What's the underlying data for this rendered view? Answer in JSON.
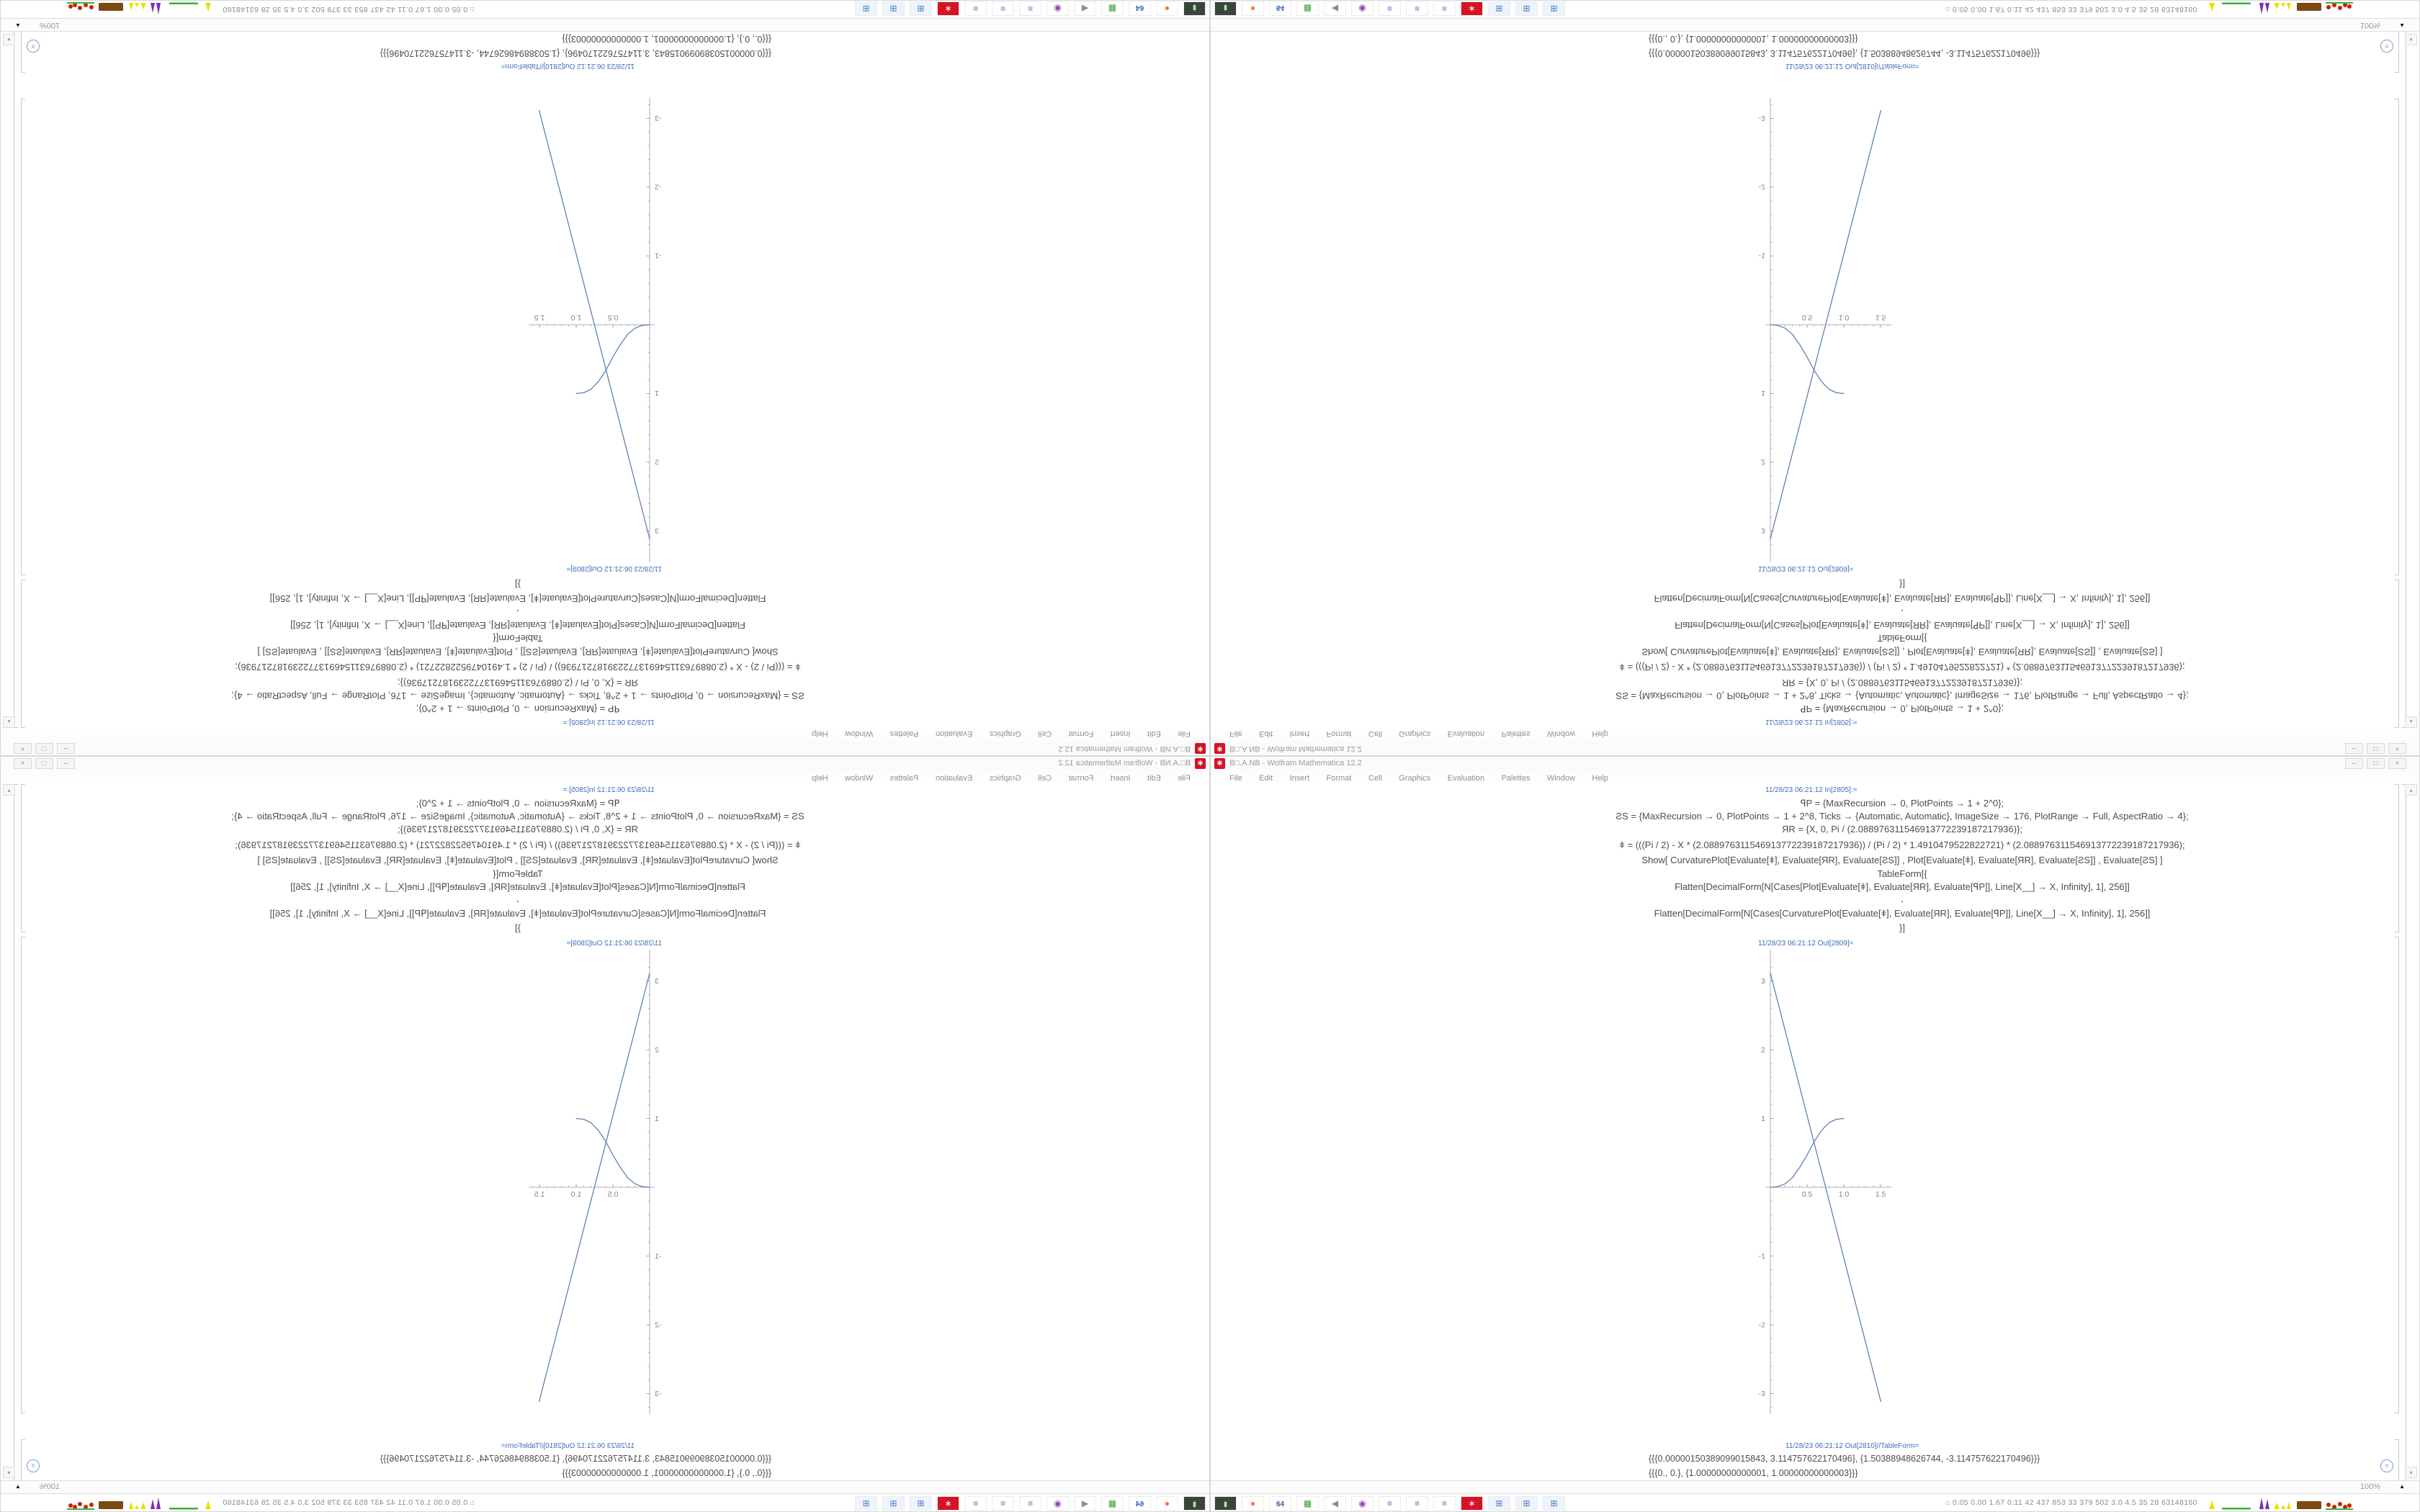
{
  "window": {
    "title": "B□.A.NB - Wolfram Mathematica 12.2",
    "app_icon": "mathematica-spikey-icon",
    "app_icon_glyph": "∗",
    "controls": {
      "minimize": "–",
      "maximize": "□",
      "close": "×"
    },
    "menu": [
      "File",
      "Edit",
      "Insert",
      "Format",
      "Cell",
      "Graphics",
      "Evaluation",
      "Palettes",
      "Window",
      "Help"
    ],
    "magnification": "100%",
    "magnification_arrow": "▲",
    "scroll_up_glyph": "▴",
    "scroll_down_glyph": "▾",
    "more_output_glyph": "»"
  },
  "notebook": {
    "in_label": "11/28/23 06:21:12 In[2805]:=",
    "code_lines": [
      "ꟼP = {MaxRecursion → 0, PlotPoints → 1 + 2^0};",
      "ƧS = {MaxRecursion → 0, PlotPoints → 1 + 2^8, Ticks → {Automatic, Automatic}, ImageSize → 176, PlotRange → Full, AspectRatio → 4};",
      "ЯR = {X, 0, Pi / (2.088976311546913772239187217936)};",
      "ǂ = (((Pi / 2) - X * (2.088976311546913772239187217936)) / (Pi / 2) * 1.4910479522822721) * (2.088976311546913772239187217936);",
      "Show[  CurvaturePlot[Evaluate[ǂ], Evaluate[ЯR], Evaluate[ƧS]] ,  Plot[Evaluate[ǂ], Evaluate[ЯR], Evaluate[ƧS]] ,  Evaluate[ƧS]  ]",
      "TableForm[{",
      "Flatten[DecimalForm[N[Cases[Plot[Evaluate[ǂ], Evaluate[ЯR], Evaluate[ꟼP]], Line[X__] → X, Infinity], 1], 256]]",
      ",",
      "Flatten[DecimalForm[N[Cases[CurvaturePlot[Evaluate[ǂ], Evaluate[ЯR], Evaluate[ꟼP]], Line[X__] → X, Infinity], 1], 256]]",
      "}]"
    ],
    "out1_label": "11/28/23 06:21:12 Out[2809]=",
    "out2_label": "11/28/23 06:21:12 Out[2810]//TableForm=",
    "out2_line1": "{{{0.00000150389099015843, 3.114757622170496}, {1.50388948626744, -3.114757622170496}}}",
    "out2_line2": "{{{0., 0.}, {1.00000000000001, 1.00000000000003}}}"
  },
  "chart_data": {
    "type": "line",
    "title": "",
    "xlabel": "",
    "ylabel": "",
    "xlim": [
      -0.07,
      1.65
    ],
    "ylim": [
      -3.3,
      3.45
    ],
    "xticks": [
      0.5,
      1.0,
      1.5
    ],
    "yticks": [
      3,
      2,
      1,
      -1,
      -2,
      -3
    ],
    "xtick_labels": [
      "0.5",
      "1.0",
      "1.5"
    ],
    "ytick_labels": [
      "3",
      "2",
      "1",
      "-1",
      "-2",
      "-3"
    ],
    "grid": false,
    "legend": "none",
    "axis_color": "#9a9a9a",
    "stroke_color": "#5e81b5",
    "series": [
      {
        "name": "linear-ramp-line",
        "points": [
          [
            1.50389099e-06,
            3.114757622170496
          ],
          [
            1.50388948626744,
            -3.114757622170496
          ]
        ]
      },
      {
        "name": "curvature-sigmoid",
        "points": [
          [
            0,
            0
          ],
          [
            0.1,
            0.008
          ],
          [
            0.2,
            0.05
          ],
          [
            0.3,
            0.14
          ],
          [
            0.4,
            0.29
          ],
          [
            0.5,
            0.47
          ],
          [
            0.6,
            0.67
          ],
          [
            0.7,
            0.83
          ],
          [
            0.8,
            0.94
          ],
          [
            0.9,
            0.99
          ],
          [
            1.0,
            1.0
          ]
        ]
      }
    ]
  },
  "taskbar": {
    "stats": "⌂  0.05 0.00 1.67 0.11  42  437  853  33  379  502  3.0  4.5  35  28  63148160",
    "icons": [
      {
        "name": "terminal-icon",
        "glyph": "▮"
      },
      {
        "name": "firefox-icon",
        "glyph": "●"
      },
      {
        "name": "emulator64-icon",
        "glyph": "64"
      },
      {
        "name": "display-icon",
        "glyph": "▦"
      },
      {
        "name": "volume-icon",
        "glyph": "◀"
      },
      {
        "name": "chat-icon",
        "glyph": "◉"
      },
      {
        "name": "notepad-icon",
        "glyph": "≡"
      },
      {
        "name": "notepad-icon",
        "glyph": "≡"
      },
      {
        "name": "notepad-icon",
        "glyph": "≡"
      },
      {
        "name": "mathematica-icon",
        "glyph": "∗"
      },
      {
        "name": "calculator-icon",
        "glyph": "⊞"
      },
      {
        "name": "calculator-icon",
        "glyph": "⊞"
      },
      {
        "name": "calculator-icon",
        "glyph": "⊞"
      }
    ]
  },
  "colors": {
    "mathematica_red": "#d41324",
    "cell_label_blue": "#3d6eb5",
    "plot_stroke": "#5e81b5",
    "axis_gray": "#9a9a9a",
    "ui_text_gray": "#8f8f8f"
  }
}
